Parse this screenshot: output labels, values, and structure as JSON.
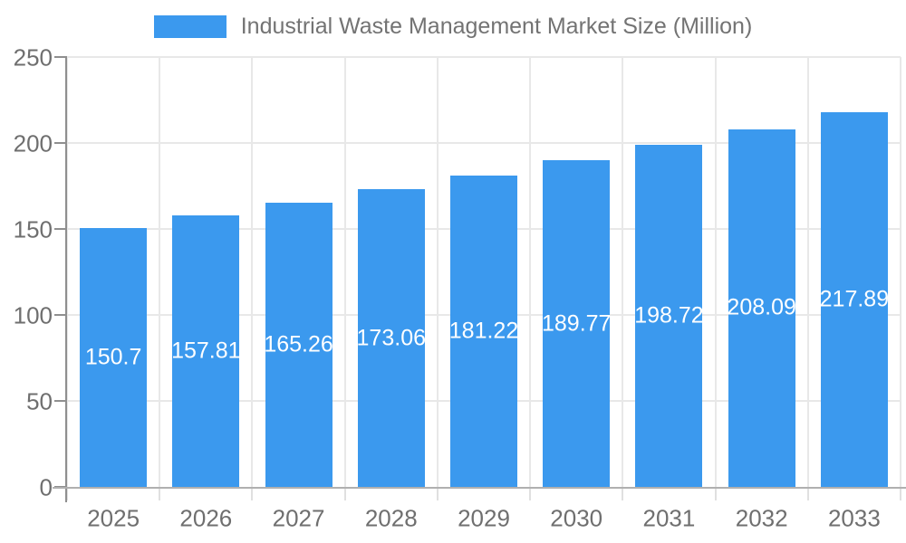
{
  "chart_data": {
    "type": "bar",
    "title": "",
    "legend": "Industrial Waste Management Market Size (Million)",
    "legend_position": "top",
    "categories": [
      "2025",
      "2026",
      "2027",
      "2028",
      "2029",
      "2030",
      "2031",
      "2032",
      "2033"
    ],
    "values": [
      150.7,
      157.81,
      165.26,
      173.06,
      181.22,
      189.77,
      198.72,
      208.09,
      217.89
    ],
    "value_labels": [
      "150.7",
      "157.81",
      "165.26",
      "173.06",
      "181.22",
      "189.77",
      "198.72",
      "208.09",
      "217.89"
    ],
    "xlabel": "",
    "ylabel": "",
    "ylim": [
      0,
      250
    ],
    "yticks": [
      0,
      50,
      100,
      150,
      200,
      250
    ],
    "grid": true,
    "colors": {
      "bar": "#3b99ee",
      "value_label": "#ffffff",
      "tick_label": "#6f6f6f",
      "legend_text": "#737373",
      "gridline": "#e8e8e8",
      "y_axis": "#8f8f8f",
      "x_axis": "#b0b0b0"
    }
  }
}
